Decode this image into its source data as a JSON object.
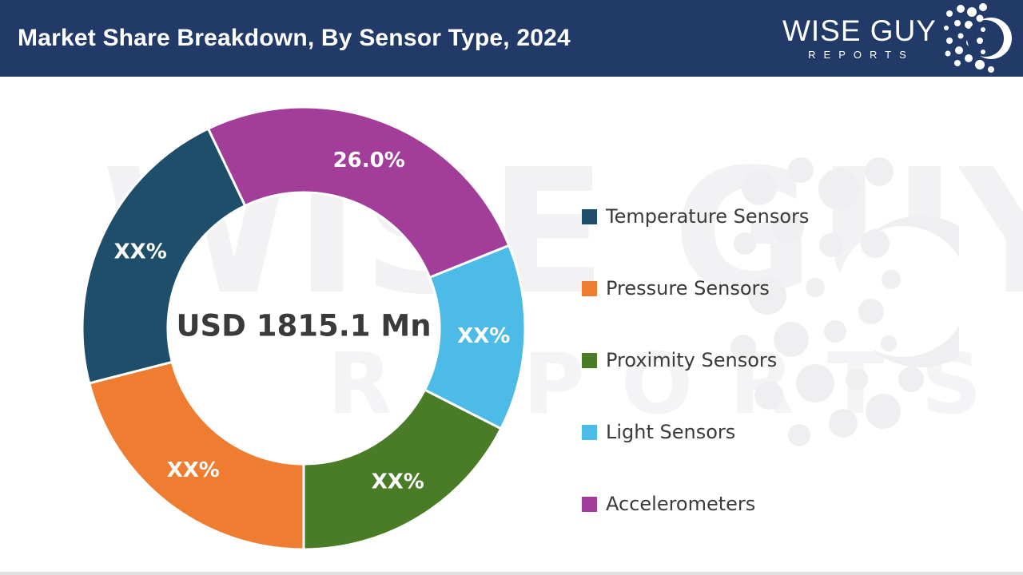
{
  "header": {
    "title": "Market Share Breakdown, By Sensor Type, 2024",
    "bg_color": "#213A68",
    "logo": {
      "line1": "WISE GUY",
      "line2": "REPORTS"
    }
  },
  "watermark": {
    "line1": "WISE GUY",
    "line2": "REPORTS"
  },
  "chart_data": {
    "type": "donut",
    "title": "Market Share Breakdown, By Sensor Type, 2024",
    "center_label": "USD 1815.1 Mn",
    "start_angle_deg": 180,
    "direction": "clockwise",
    "inner_radius_ratio": 0.615,
    "legend_position": "right",
    "slices": [
      {
        "name": "Pressure Sensors",
        "pct": 21.0,
        "label": "XX%",
        "color": "#EE7D31"
      },
      {
        "name": "Temperature Sensors",
        "pct": 21.9,
        "label": "XX%",
        "color": "#1F4E6B"
      },
      {
        "name": "Accelerometers",
        "pct": 26.0,
        "label": "26.0%",
        "color": "#A23D99"
      },
      {
        "name": "Light Sensors",
        "pct": 13.6,
        "label": "XX%",
        "color": "#4DBBE8"
      },
      {
        "name": "Proximity Sensors",
        "pct": 17.5,
        "label": "XX%",
        "color": "#4A7C28"
      }
    ],
    "legend": [
      {
        "label": "Temperature Sensors",
        "color": "#1F4E6B"
      },
      {
        "label": "Pressure Sensors",
        "color": "#EE7D31"
      },
      {
        "label": "Proximity Sensors",
        "color": "#4A7C28"
      },
      {
        "label": "Light Sensors",
        "color": "#4DBBE8"
      },
      {
        "label": "Accelerometers",
        "color": "#A23D99"
      }
    ]
  }
}
